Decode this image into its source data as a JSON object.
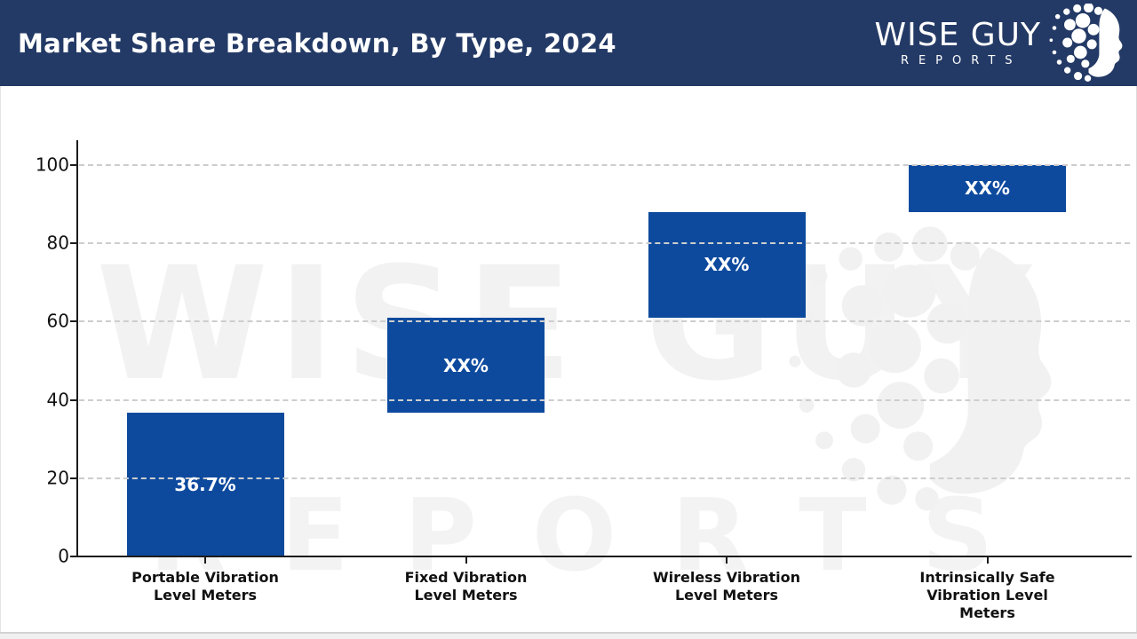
{
  "header": {
    "title": "Market Share Breakdown, By Type, 2024",
    "logo": {
      "line1": "WISE GUY",
      "line2": "REPORTS"
    }
  },
  "watermark": {
    "line1": "WISE GUY",
    "line2": "REPORTS"
  },
  "chart_data": {
    "type": "bar",
    "subtype": "waterfall-breakdown",
    "title": "Market Share Breakdown, By Type, 2024",
    "xlabel": "",
    "ylabel": "",
    "ylim": [
      0,
      100
    ],
    "yticks": [
      0,
      20,
      40,
      60,
      80,
      100
    ],
    "grid": "horizontal-dashed",
    "legend": "none",
    "bar_color": "#0d4a9e",
    "bar_label_color": "#ffffff",
    "categories": [
      "Portable Vibration Level Meters",
      "Fixed Vibration Level Meters",
      "Wireless Vibration Level Meters",
      "Intrinsically Safe Vibration Level Meters"
    ],
    "category_lines": [
      [
        "Portable Vibration",
        "Level Meters"
      ],
      [
        "Fixed Vibration",
        "Level Meters"
      ],
      [
        "Wireless Vibration",
        "Level Meters"
      ],
      [
        "Intrinsically Safe",
        "Vibration Level",
        "Meters"
      ]
    ],
    "segments": [
      {
        "start": 0,
        "end": 36.7,
        "label": "36.7%"
      },
      {
        "start": 36.7,
        "end": 61,
        "label": "XX%"
      },
      {
        "start": 61,
        "end": 88,
        "label": "XX%"
      },
      {
        "start": 88,
        "end": 100,
        "label": "XX%"
      }
    ]
  }
}
